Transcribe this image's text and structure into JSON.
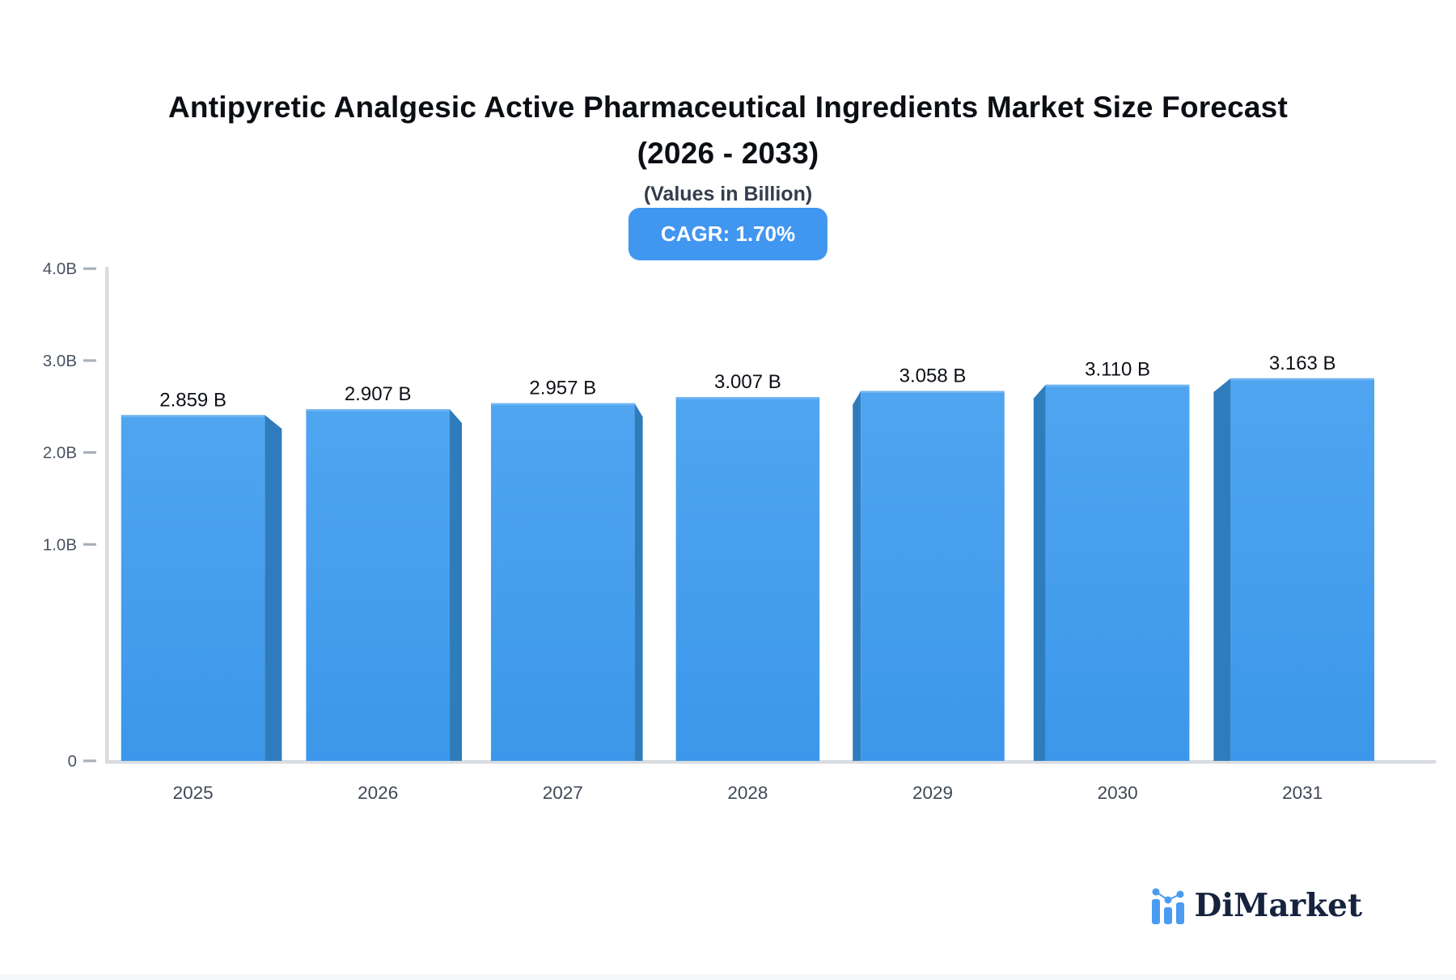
{
  "header": {
    "title_line1": "Antipyretic Analgesic Active Pharmaceutical Ingredients Market Size Forecast",
    "title_line2": "(2026 - 2033)",
    "subtitle": "(Values in Billion)",
    "cagr_badge": "CAGR: 1.70%"
  },
  "branding": {
    "logo_text": "DiMarket",
    "logo_icon": "mini-bar-chart-icon"
  },
  "colors": {
    "badge_bg": "#4196f0",
    "bar_face_top": "#50a5f0",
    "bar_face_bottom": "#3c97ea",
    "bar_face_edge": "#74b7f3",
    "bar_side": "#2f7cbc",
    "axis_line": "#d8dbe0",
    "tick_dash": "#a9b0ba",
    "y_label_color": "#495363",
    "x_label_color": "#3f4856",
    "value_label_color": "#0d1117",
    "logo_blue": "#4a9cf2",
    "logo_navy": "#16233f"
  },
  "chart_data": {
    "type": "bar",
    "title": "Antipyretic Analgesic Active Pharmaceutical Ingredients Market Size Forecast (2026 - 2033)",
    "subtitle": "(Values in Billion)",
    "annotation": "CAGR: 1.70%",
    "categories": [
      "2025",
      "2026",
      "2027",
      "2028",
      "2029",
      "2030",
      "2031"
    ],
    "values": [
      2.859,
      2.907,
      2.957,
      3.007,
      3.058,
      3.11,
      3.163
    ],
    "value_labels": [
      "2.859 B",
      "2.907 B",
      "2.957 B",
      "3.007 B",
      "3.058 B",
      "3.110 B",
      "3.163 B"
    ],
    "xlabel": "",
    "ylabel": "",
    "ylim": [
      0,
      4
    ],
    "grid": false,
    "legend": false,
    "style": "3d-perspective-columns",
    "y_ticks": [
      {
        "value": 4,
        "label": "4.0B"
      },
      {
        "value": 3,
        "label": "3.0B"
      },
      {
        "value": 2,
        "label": "2.0B"
      },
      {
        "value": 1,
        "label": "1.0B"
      },
      {
        "value": 0,
        "label": "0"
      }
    ]
  }
}
